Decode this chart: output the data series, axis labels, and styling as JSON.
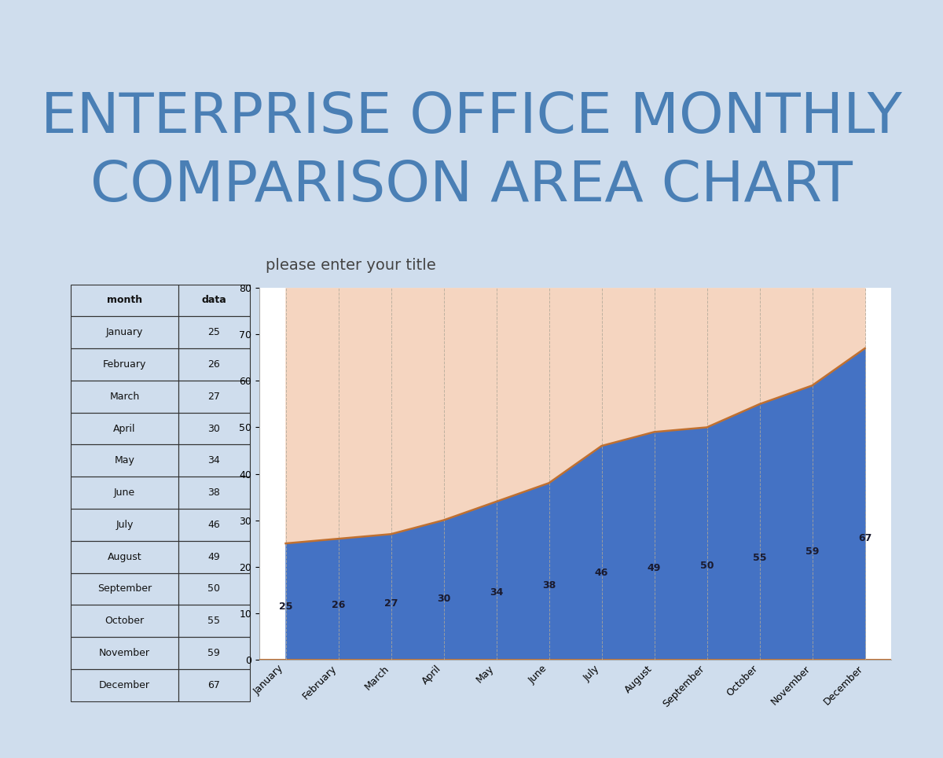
{
  "title_line1": "ENTERPRISE OFFICE MONTHLY",
  "title_line2": "COMPARISON AREA CHART",
  "title_color": "#4a7fb5",
  "background_color": "#cfdded",
  "chart_title": "please enter your title",
  "months": [
    "January",
    "February",
    "March",
    "April",
    "May",
    "June",
    "July",
    "August",
    "September",
    "October",
    "November",
    "December"
  ],
  "values": [
    25,
    26,
    27,
    30,
    34,
    38,
    46,
    49,
    50,
    55,
    59,
    67
  ],
  "upper_value": 80,
  "area_color": "#4472c4",
  "upper_area_color": "#f5d5c0",
  "area_line_color": "#c07030",
  "ylim": [
    0,
    80
  ],
  "yticks": [
    0,
    10,
    20,
    30,
    40,
    50,
    60,
    70,
    80
  ],
  "chart_bg_color": "#ffffff",
  "card_bg_color": "#f8fafc",
  "table_header": [
    "month",
    "data"
  ],
  "annotation_color": "#1a1a2e",
  "vline_color": "#b0a898",
  "title_fontsize": 52,
  "chart_title_fontsize": 14,
  "annotation_fontsize": 9,
  "axis_tick_fontsize": 9,
  "table_fontsize": 9
}
